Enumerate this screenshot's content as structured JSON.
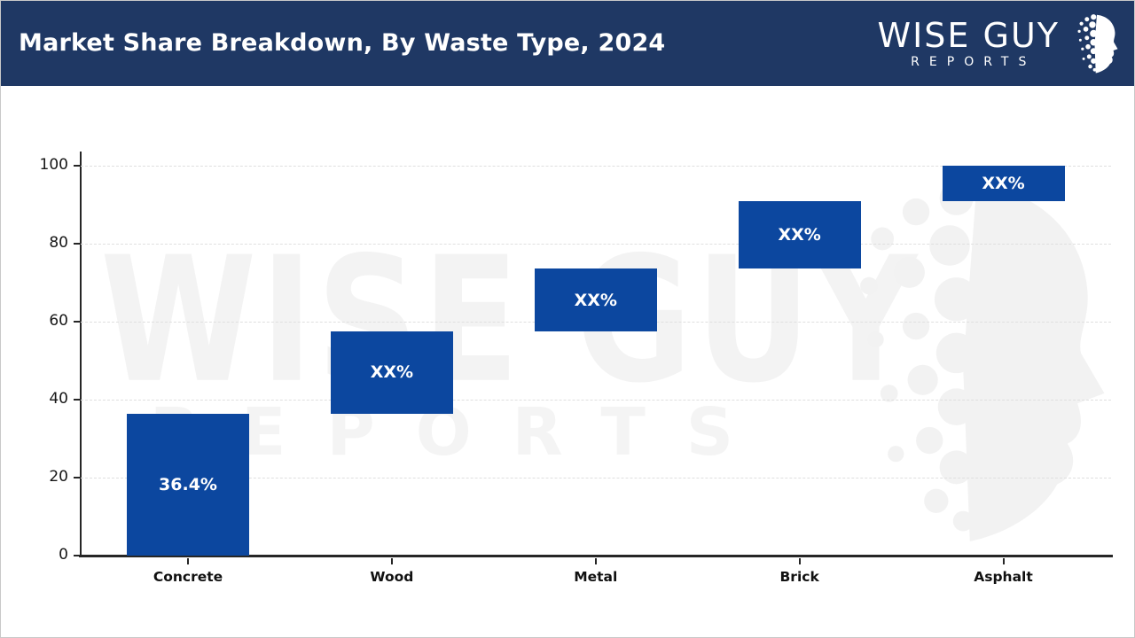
{
  "header": {
    "title": "Market Share Breakdown, By Waste Type, 2024",
    "bg_color": "#1f3864",
    "logo": {
      "line1": "WISE GUY",
      "line2": "REPORTS"
    }
  },
  "watermark": {
    "line1": "WISE GUY",
    "line2": "REPORTS"
  },
  "chart_data": {
    "type": "bar",
    "subtype": "waterfall",
    "title": "Market Share Breakdown, By Waste Type, 2024",
    "categories": [
      "Concrete",
      "Wood",
      "Metal",
      "Brick",
      "Asphalt"
    ],
    "bars": [
      {
        "category": "Concrete",
        "start": 0,
        "end": 36.4,
        "label": "36.4%"
      },
      {
        "category": "Wood",
        "start": 36.4,
        "end": 57.5,
        "label": "XX%"
      },
      {
        "category": "Metal",
        "start": 57.5,
        "end": 73.6,
        "label": "XX%"
      },
      {
        "category": "Brick",
        "start": 73.6,
        "end": 90.8,
        "label": "XX%"
      },
      {
        "category": "Asphalt",
        "start": 90.8,
        "end": 100,
        "label": "XX%"
      }
    ],
    "xlabel": "",
    "ylabel": "",
    "yticks": [
      0,
      20,
      40,
      60,
      80,
      100
    ],
    "ylim": [
      0,
      104
    ],
    "grid": "horizontal-dashed",
    "legend": "none",
    "bar_color": "#0c479f",
    "label_color": "#ffffff"
  }
}
